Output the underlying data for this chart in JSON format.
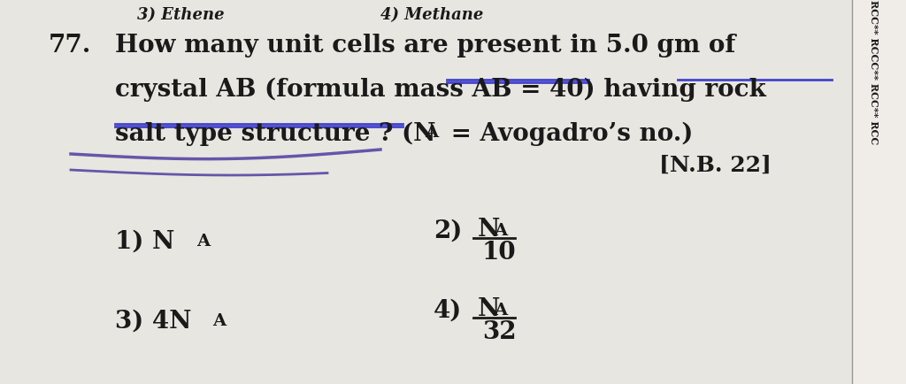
{
  "bg_color": "#e8e6e0",
  "text_color": "#1a1a1a",
  "font_size_q": 20,
  "font_size_opt": 20,
  "font_size_nb": 18,
  "font_size_side": 8,
  "underline_color": "#4444cc",
  "side_text_color": "#222222",
  "top_left_text": "3) Ethene",
  "top_right_text": "4) Methane",
  "q_num": "77.",
  "line1": "How many unit cells are present in 5.0 gm of",
  "line2": "crystal AB (formula mass AB = 40) having rock",
  "line3": "salt type structure ? (N",
  "line3_sub": "A",
  "line3_end": " = Avogadro’s no.)",
  "nb_text": "[N.B. 22]",
  "opt1": "1) N",
  "opt1_sub": "A",
  "opt2_pre": "2)",
  "opt2_num": "N",
  "opt2_sub": "A",
  "opt2_den": "10",
  "opt3": "3) 4N",
  "opt3_sub": "A",
  "opt4_pre": "4)",
  "opt4_num": "N",
  "opt4_sub": "A",
  "opt4_den": "32",
  "side_lines": [
    "RCC**",
    "RCCC",
    "RCC**",
    "RCC"
  ]
}
